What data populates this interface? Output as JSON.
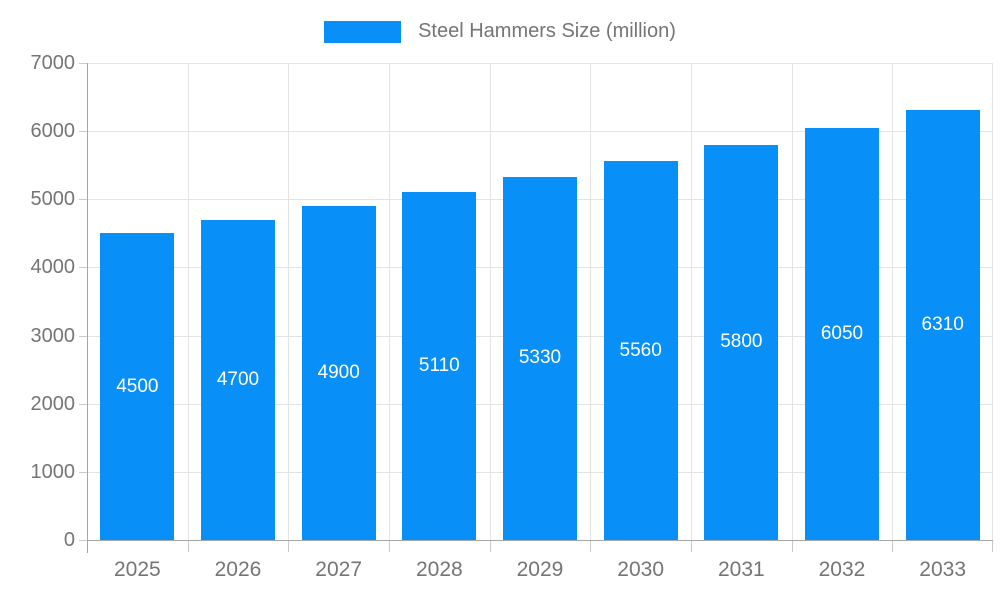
{
  "legend": {
    "label": "Steel Hammers Size (million)"
  },
  "colors": {
    "bar": "#0890f8",
    "bar_label": "#ffffff",
    "axis_text": "#757575",
    "grid_line": "#e3e3e3",
    "axis_line": "#a6a6a6",
    "tick_line": "#c9c9c9",
    "background": "#ffffff"
  },
  "chart_data": {
    "type": "bar",
    "title": "Steel Hammers Size (million)",
    "series": [
      {
        "name": "Steel Hammers Size (million)",
        "values": [
          4500,
          4700,
          4900,
          5110,
          5330,
          5560,
          5800,
          6050,
          6310
        ]
      }
    ],
    "categories": [
      "2025",
      "2026",
      "2027",
      "2028",
      "2029",
      "2030",
      "2031",
      "2032",
      "2033"
    ],
    "xlabel": "",
    "ylabel": "",
    "ylim": [
      0,
      7000
    ],
    "ytick_interval": 1000,
    "yticks": [
      0,
      1000,
      2000,
      3000,
      4000,
      5000,
      6000,
      7000
    ],
    "grid": true,
    "grid_vertical": true,
    "legend_position": "top-center",
    "value_labels": "inside-center-white"
  }
}
